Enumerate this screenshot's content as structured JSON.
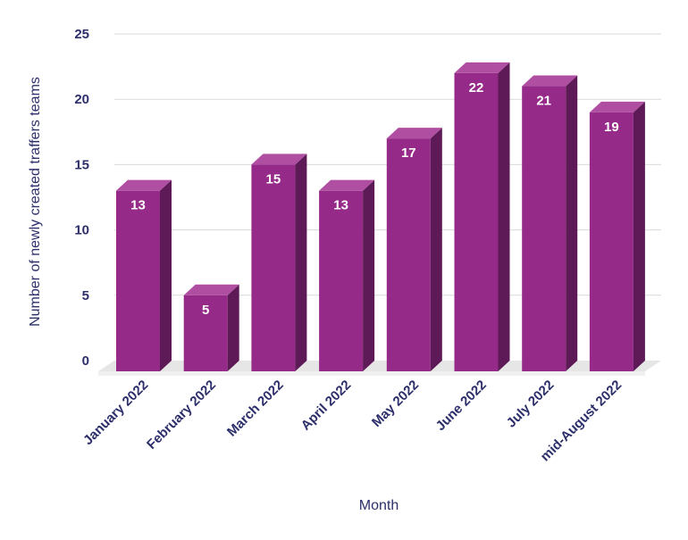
{
  "chart_data": {
    "type": "bar",
    "categories": [
      "January 2022",
      "February 2022",
      "March 2022",
      "April 2022",
      "May 2022",
      "June 2022",
      "July 2022",
      "mid-August 2022"
    ],
    "values": [
      13,
      5,
      15,
      13,
      17,
      22,
      21,
      19
    ],
    "xlabel": "Month",
    "ylabel": "Number of newly created traffers teams",
    "ylim": [
      0,
      25
    ],
    "yticks": [
      0,
      5,
      10,
      15,
      20,
      25
    ],
    "grid": true,
    "colors": {
      "bar_front": "#962a88",
      "bar_side": "#5e1a56",
      "bar_top": "#b04fa2",
      "floor": "#e6e6e6",
      "grid": "#d9d9d9",
      "text": "#2d2f6b"
    }
  }
}
